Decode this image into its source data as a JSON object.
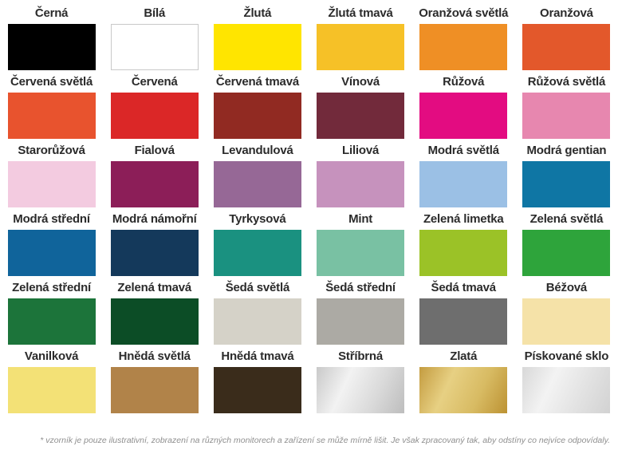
{
  "page": {
    "background": "#FFFFFF",
    "footnote": "* vzorník je pouze ilustrativní, zobrazení na různých monitorech a zařízení se může mírně lišit. Je však zpracovaný tak, aby odstíny co nejvíce odpovídaly."
  },
  "swatches": [
    {
      "label": "Černá",
      "color": "#000000"
    },
    {
      "label": "Bílá",
      "color": "#FFFFFF",
      "border": "#C9C9C9"
    },
    {
      "label": "Žlutá",
      "color": "#FFE500"
    },
    {
      "label": "Žlutá tmavá",
      "color": "#F6C127"
    },
    {
      "label": "Oranžová světlá",
      "color": "#EF8F25"
    },
    {
      "label": "Oranžová",
      "color": "#E3582B"
    },
    {
      "label": "Červená světlá",
      "color": "#E8532E"
    },
    {
      "label": "Červená",
      "color": "#DB2727"
    },
    {
      "label": "Červená tmavá",
      "color": "#912A22"
    },
    {
      "label": "Vínová",
      "color": "#722A3B"
    },
    {
      "label": "Růžová",
      "color": "#E30C81"
    },
    {
      "label": "Růžová světlá",
      "color": "#E787AF"
    },
    {
      "label": "Starorůžová",
      "color": "#F3CBE0"
    },
    {
      "label": "Fialová",
      "color": "#8C1E58"
    },
    {
      "label": "Levandulová",
      "color": "#966896"
    },
    {
      "label": "Liliová",
      "color": "#C692BD"
    },
    {
      "label": "Modrá světlá",
      "color": "#9BC0E5"
    },
    {
      "label": "Modrá gentian",
      "color": "#0F76A4"
    },
    {
      "label": "Modrá střední",
      "color": "#10649B"
    },
    {
      "label": "Modrá námořní",
      "color": "#14395B"
    },
    {
      "label": "Tyrkysová",
      "color": "#1A9180"
    },
    {
      "label": "Mint",
      "color": "#79C1A3"
    },
    {
      "label": "Zelená limetka",
      "color": "#9BC227"
    },
    {
      "label": "Zelená světlá",
      "color": "#2EA43B"
    },
    {
      "label": "Zelená střední",
      "color": "#1C743A"
    },
    {
      "label": "Zelená tmavá",
      "color": "#0C4D26"
    },
    {
      "label": "Šedá světlá",
      "color": "#D5D2C8"
    },
    {
      "label": "Šedá střední",
      "color": "#ACAAA4"
    },
    {
      "label": "Šedá tmavá",
      "color": "#6E6E6E"
    },
    {
      "label": "Béžová",
      "color": "#F5E2A8"
    },
    {
      "label": "Vanilková",
      "color": "#F3E176"
    },
    {
      "label": "Hnědá světlá",
      "color": "#B18349"
    },
    {
      "label": "Hnědá tmavá",
      "color": "#3A2C1B"
    },
    {
      "label": "Stříbrná",
      "gradient_stops": [
        "#C9C9C9",
        "#F2F2F2",
        "#DADADA",
        "#BDBDBD"
      ]
    },
    {
      "label": "Zlatá",
      "gradient_stops": [
        "#C49C40",
        "#E7D083",
        "#D8BB63",
        "#BC9233"
      ]
    },
    {
      "label": "Pískované sklo",
      "gradient_stops": [
        "#D8D8D8",
        "#F3F3F3",
        "#E2E2E2",
        "#D2D2D2"
      ]
    }
  ]
}
